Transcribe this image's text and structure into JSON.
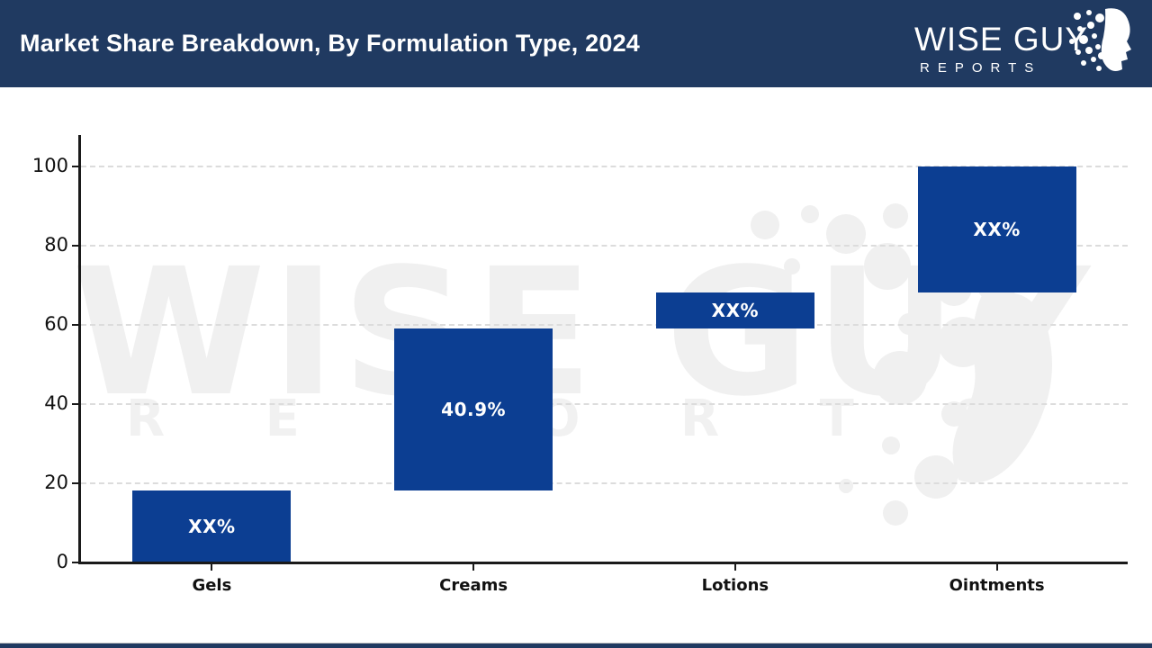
{
  "header": {
    "title": "Market Share Breakdown, By Formulation Type, 2024",
    "logo": {
      "line1": "WISE GUY",
      "line2": "R E P O R T S"
    }
  },
  "watermark": {
    "line1": "WISE GUY",
    "line2": "R E P O R T S"
  },
  "colors": {
    "header_bg": "#203a61",
    "bar_blue": "#0c3e92",
    "gridline": "#dcdcdc",
    "axis": "#1a1a1a",
    "watermark_gray": "#f0f0f0",
    "footer_bg": "#203a61"
  },
  "chart_data": {
    "type": "bar",
    "subtype": "floating-waterfall",
    "title": "Market Share Breakdown, By Formulation Type, 2024",
    "categories": [
      "Gels",
      "Creams",
      "Lotions",
      "Ointments"
    ],
    "series": [
      {
        "name": "Market Share %",
        "segments": [
          {
            "category": "Gels",
            "start": 0,
            "end": 18.2,
            "label": "XX%"
          },
          {
            "category": "Creams",
            "start": 18.2,
            "end": 59.1,
            "label": "40.9%"
          },
          {
            "category": "Lotions",
            "start": 59.1,
            "end": 68.2,
            "label": "XX%"
          },
          {
            "category": "Ointments",
            "start": 68.2,
            "end": 100,
            "label": "XX%"
          }
        ]
      }
    ],
    "yticks": [
      "0",
      "20",
      "40",
      "60",
      "80",
      "100"
    ],
    "ylim": [
      0,
      108
    ],
    "xlabel": "",
    "ylabel": "",
    "grid": "horizontal-dashed",
    "legend": "none",
    "bar_color": "#0c3e92",
    "bar_label_color": "#ffffff"
  }
}
